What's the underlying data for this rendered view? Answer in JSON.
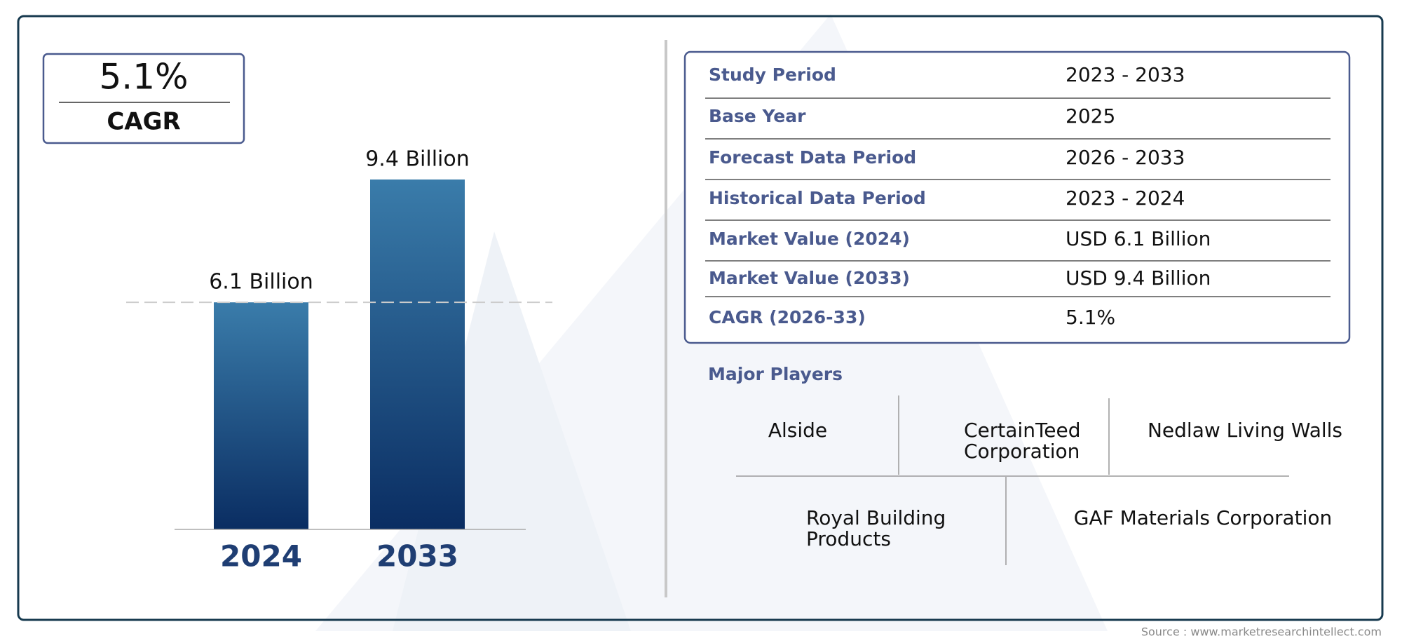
{
  "cagr_box": {
    "value": "5.1%",
    "label": "CAGR"
  },
  "chart_data": {
    "type": "bar",
    "categories": [
      "2024",
      "2033"
    ],
    "values": [
      6.1,
      9.4
    ],
    "value_labels": [
      "6.1 Billion",
      "9.4 Billion"
    ],
    "color": [
      "#3a7caa",
      "#0a2d62"
    ]
  },
  "table": {
    "rows": [
      [
        "Study Period",
        "2023 - 2033"
      ],
      [
        "Base Year",
        "2025"
      ],
      [
        "Forecast Data Period",
        "2026 - 2033"
      ],
      [
        "Historical Data Period",
        "2023 - 2024"
      ],
      [
        "Market Value (2024)",
        "USD 6.1 Billion"
      ],
      [
        "Market Value (2033)",
        "USD 9.4 Billion"
      ],
      [
        "CAGR (2026-33)",
        "5.1%"
      ]
    ]
  },
  "major_players": {
    "title": "Major Players",
    "names": [
      [
        "Alside"
      ],
      [
        "CertainTeed",
        "Corporation"
      ],
      [
        "Nedlaw Living Walls"
      ],
      [
        "Royal Building",
        "Products"
      ],
      [
        "GAF Materials Corporation"
      ]
    ]
  },
  "source": "Source : www.marketresearchintellect.com"
}
